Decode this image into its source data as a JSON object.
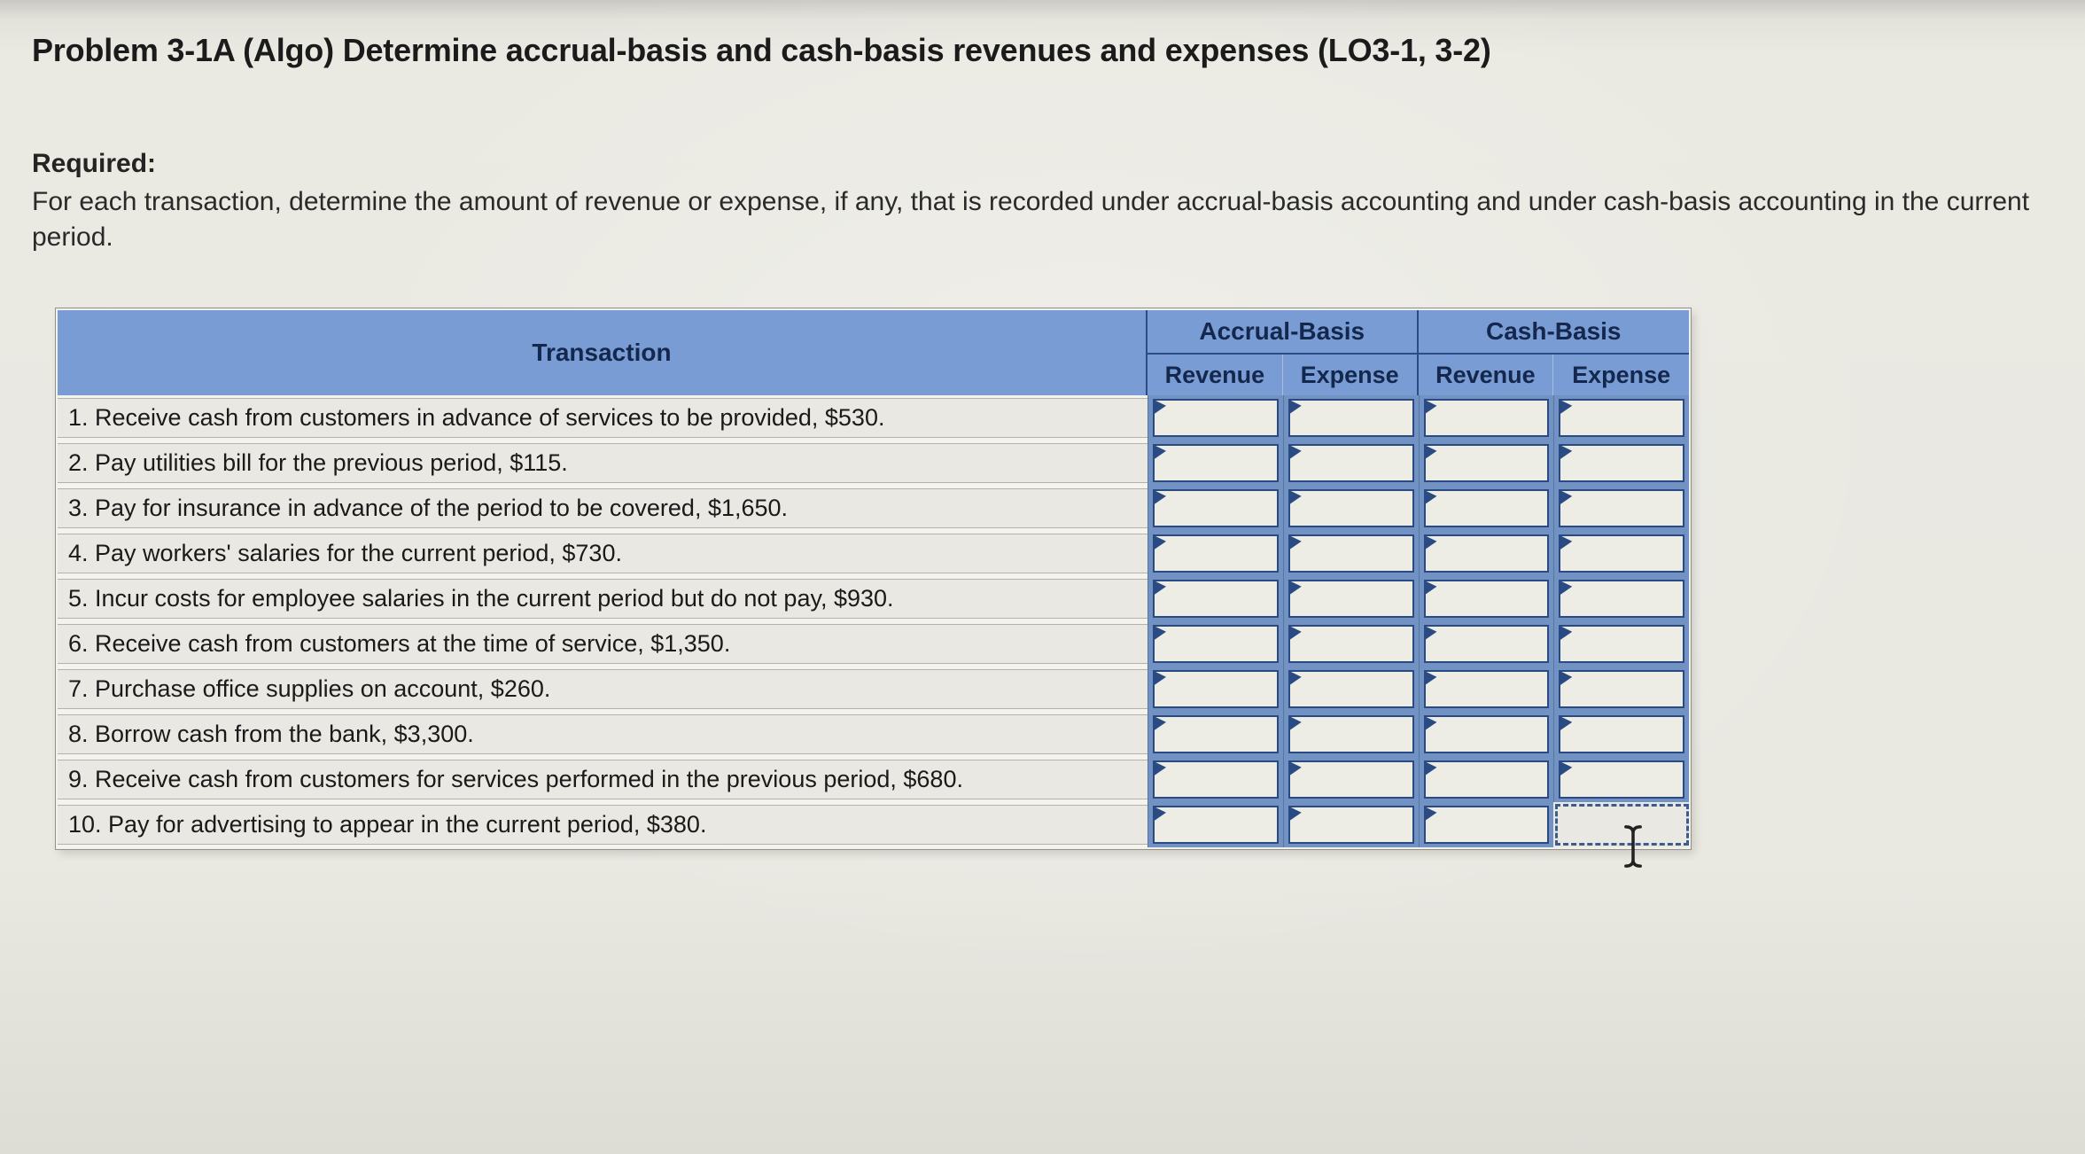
{
  "page": {
    "title": "Problem 3-1A (Algo) Determine accrual-basis and cash-basis revenues and expenses (LO3-1, 3-2)",
    "required_label": "Required:",
    "instructions": "For each transaction, determine the amount of revenue or expense, if any, that is recorded under accrual-basis accounting and under cash-basis accounting in the current period."
  },
  "table": {
    "transaction_header": "Transaction",
    "group_headers": [
      {
        "label": "Accrual-Basis"
      },
      {
        "label": "Cash-Basis"
      }
    ],
    "sub_headers": [
      "Revenue",
      "Expense",
      "Revenue",
      "Expense"
    ],
    "rows": [
      {
        "transaction": "1. Receive cash from customers in advance of services to be provided, $530.",
        "accrual_revenue": "",
        "accrual_expense": "",
        "cash_revenue": "",
        "cash_expense": ""
      },
      {
        "transaction": "2. Pay utilities bill for the previous period, $115.",
        "accrual_revenue": "",
        "accrual_expense": "",
        "cash_revenue": "",
        "cash_expense": ""
      },
      {
        "transaction": "3. Pay for insurance in advance of the period to be covered, $1,650.",
        "accrual_revenue": "",
        "accrual_expense": "",
        "cash_revenue": "",
        "cash_expense": ""
      },
      {
        "transaction": "4. Pay workers' salaries for the current period, $730.",
        "accrual_revenue": "",
        "accrual_expense": "",
        "cash_revenue": "",
        "cash_expense": ""
      },
      {
        "transaction": "5. Incur costs for employee salaries in the current period but do not pay, $930.",
        "accrual_revenue": "",
        "accrual_expense": "",
        "cash_revenue": "",
        "cash_expense": ""
      },
      {
        "transaction": "6. Receive cash from customers at the time of service, $1,350.",
        "accrual_revenue": "",
        "accrual_expense": "",
        "cash_revenue": "",
        "cash_expense": ""
      },
      {
        "transaction": "7. Purchase office supplies on account, $260.",
        "accrual_revenue": "",
        "accrual_expense": "",
        "cash_revenue": "",
        "cash_expense": ""
      },
      {
        "transaction": "8. Borrow cash from the bank, $3,300.",
        "accrual_revenue": "",
        "accrual_expense": "",
        "cash_revenue": "",
        "cash_expense": ""
      },
      {
        "transaction": "9. Receive cash from customers for services performed in the previous period, $680.",
        "accrual_revenue": "",
        "accrual_expense": "",
        "cash_revenue": "",
        "cash_expense": ""
      },
      {
        "transaction": "10. Pay for advertising to appear in the current period, $380.",
        "accrual_revenue": "",
        "accrual_expense": "",
        "cash_revenue": "",
        "cash_expense": ""
      }
    ],
    "focused_cell": {
      "row_index": 9,
      "cell_key": "cash_expense"
    },
    "icons": {
      "cell_marker": "right-triangle-flag",
      "text_cursor": "i-beam"
    },
    "colors": {
      "header_bg": "#7a9cd4",
      "header_text": "#14284e",
      "zone_bg": "#7292c4",
      "cell_border": "#294a82",
      "cell_fill": "#edece5",
      "row_fill": "#e9e8e2",
      "focus_dash": "#3c5c8e",
      "page_bg": "#e8e7e0"
    }
  }
}
